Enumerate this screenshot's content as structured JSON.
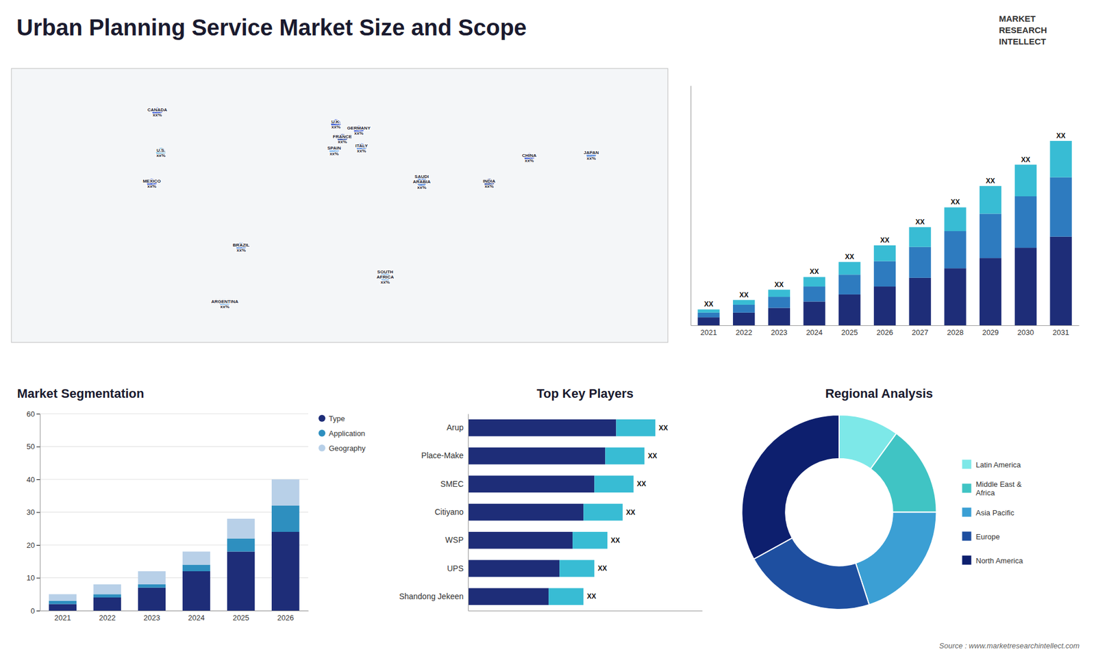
{
  "title": "Urban Planning Service Market Size and Scope",
  "annotations": [
    "MARKET",
    "RESEARCH",
    "INTELLECT",
    "Source : www.marketresearchintellect.com"
  ],
  "chart_data": [
    {
      "type": "map",
      "categories": [
        "CANADA\nxx%",
        "U.S.\nxx%",
        "MEXICO\nxx%",
        "BRAZIL\nxx%",
        "ARGENTINA\nxx%",
        "U.K.\nxx%",
        "FRANCE\nxx%",
        "SPAIN\nxx%",
        "GERMANY\nxx%",
        "ITALY\nxx%",
        "SAUDI\nARABIA\nxx%",
        "SOUTH\nAFRICA\nxx%",
        "CHINA\nxx%",
        "INDIA\nxx%",
        "JAPAN\nxx%"
      ],
      "x": [
        -100,
        -98,
        -103,
        -54,
        -63,
        -2,
        1.5,
        -3,
        10.5,
        12,
        45,
        25,
        104,
        82,
        138
      ],
      "values": [
        61,
        39,
        22,
        -13,
        -44,
        54.5,
        46.5,
        40,
        51,
        41.5,
        23,
        -29,
        36,
        22,
        37.5
      ],
      "colors": [
        "#2244cc",
        "#7abbdd",
        "#2244cc",
        "#5588dd",
        "#88bbee",
        "#2244cc",
        "#1a3a99",
        "#88bbee",
        "#2244cc",
        "#5588dd",
        "#5588dd",
        "#88bbee",
        "#2244cc",
        "#1a3a99",
        "#5588dd"
      ],
      "xlim": [
        -180,
        180
      ],
      "ylim": [
        -65,
        85
      ],
      "tick_labels": false
    },
    {
      "type": "bar",
      "stacked": true,
      "categories": [
        "2021",
        "2022",
        "2023",
        "2024",
        "2025",
        "2026",
        "2027",
        "2028",
        "2029",
        "2030",
        "2031"
      ],
      "series": [
        {
          "color": "#1e2d78",
          "values": [
            1.0,
            1.6,
            2.2,
            3.0,
            3.9,
            4.9,
            6.0,
            7.2,
            8.5,
            9.8,
            11.2
          ]
        },
        {
          "color": "#2e7bbf",
          "values": [
            0.6,
            1.0,
            1.4,
            1.9,
            2.5,
            3.2,
            3.9,
            4.7,
            5.6,
            6.5,
            7.5
          ]
        },
        {
          "color": "#38bcd4",
          "values": [
            0.4,
            0.6,
            0.9,
            1.2,
            1.6,
            2.0,
            2.5,
            3.0,
            3.5,
            4.0,
            4.6
          ]
        }
      ],
      "annotations": [
        "XX",
        "XX",
        "XX",
        "XX",
        "XX",
        "XX",
        "XX",
        "XX",
        "XX",
        "XX",
        "XX"
      ],
      "ylim": [
        0,
        30.29
      ],
      "tick_labels": "x"
    },
    {
      "type": "bar",
      "title": "Market Segmentation",
      "stacked": true,
      "categories": [
        "2021",
        "2022",
        "2023",
        "2024",
        "2025",
        "2026"
      ],
      "series": [
        {
          "name": "Type",
          "color": "#1e2d78",
          "values": [
            2,
            4,
            7,
            12,
            18,
            24
          ]
        },
        {
          "name": "Application",
          "color": "#2e8fbf",
          "values": [
            1,
            1,
            1,
            2,
            4,
            8
          ]
        },
        {
          "name": "Geography",
          "color": "#b8d0e8",
          "values": [
            2,
            3,
            4,
            4,
            6,
            8
          ]
        }
      ],
      "ylim": [
        0,
        60
      ],
      "yticks": [
        0,
        10,
        20,
        30,
        40,
        50,
        60
      ],
      "grid": true,
      "legend": "right"
    },
    {
      "type": "bar",
      "title": "Top Key Players",
      "orientation": "horizontal",
      "stacked": true,
      "categories": [
        "Arup",
        "Place-Make",
        "SMEC",
        "Citiyano",
        "WSP",
        "UPS",
        "Shandong Jekeen"
      ],
      "series": [
        {
          "color": "#1e2d78",
          "values": [
            6.8,
            6.3,
            5.8,
            5.3,
            4.8,
            4.2,
            3.7
          ]
        },
        {
          "color": "#38bcd4",
          "values": [
            1.8,
            1.8,
            1.8,
            1.8,
            1.6,
            1.6,
            1.6
          ]
        }
      ],
      "annotations": [
        "XX",
        "XX",
        "XX",
        "XX",
        "XX",
        "XX",
        "XX"
      ],
      "xlim": [
        0,
        10.75
      ],
      "tick_labels": "y"
    },
    {
      "type": "donut",
      "title": "Regional Analysis",
      "categories": [
        "Latin America",
        "Middle East &\nAfrica",
        "Asia Pacific",
        "Europe",
        "North America"
      ],
      "values": [
        10,
        15,
        20,
        22,
        33
      ],
      "colors": [
        "#7de8e8",
        "#40c4c4",
        "#3b9fd4",
        "#1e4fa0",
        "#0d1f6e"
      ],
      "legend": "right"
    }
  ]
}
